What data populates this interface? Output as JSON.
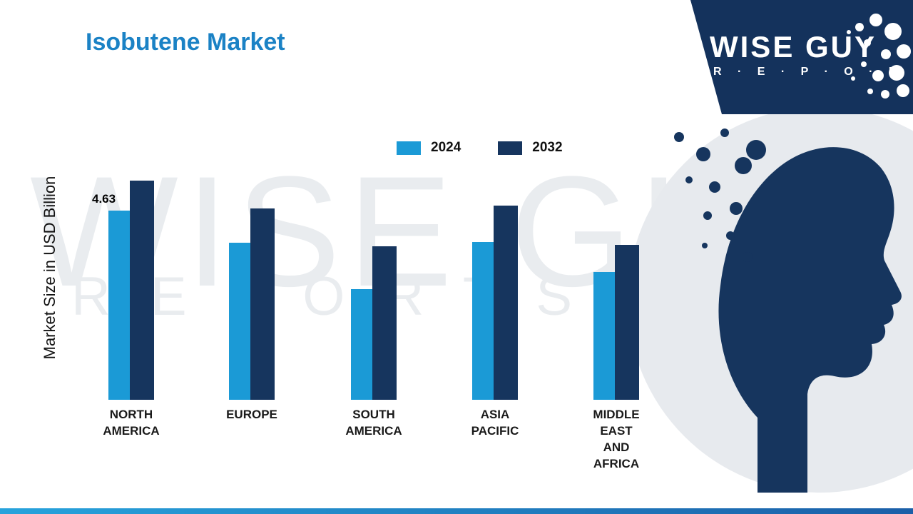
{
  "page": {
    "title": "Isobutene Market"
  },
  "logo": {
    "line1": "WISE GUY",
    "line2": "R · E · P · O · R · T · S"
  },
  "watermark": {
    "line1": "WISE GUY",
    "line2": "REPORTS"
  },
  "colors": {
    "accent": "#1b82c5",
    "bar_2024": "#1b9ad6",
    "bar_2032": "#16355e",
    "footer_left": "#27a3dc",
    "footer_right": "#1b5fa8",
    "watermark_gray": "#e9ecef"
  },
  "chart_data": {
    "type": "bar",
    "title": "Isobutene Market",
    "ylabel": "Market Size in USD Billion",
    "xlabel": "",
    "grid": false,
    "legend_position": "top",
    "ylim": [
      0,
      6
    ],
    "categories": [
      "NORTH AMERICA",
      "EUROPE",
      "SOUTH AMERICA",
      "ASIA PACIFIC",
      "MIDDLE EAST AND AFRICA"
    ],
    "series": [
      {
        "name": "2024",
        "color": "#1b9ad6",
        "values": [
          4.63,
          3.85,
          2.71,
          3.86,
          3.13
        ]
      },
      {
        "name": "2032",
        "color": "#16355e",
        "values": [
          5.36,
          4.68,
          3.76,
          4.75,
          3.79
        ]
      }
    ],
    "data_labels": {
      "series": "2024",
      "category": "NORTH AMERICA",
      "value": "4.63"
    }
  }
}
